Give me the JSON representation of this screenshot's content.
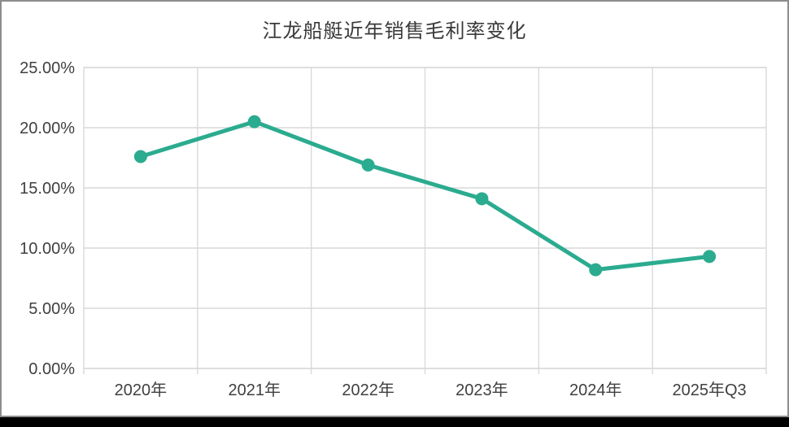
{
  "window": {
    "border_color": "#8d8d8d",
    "background": "#ffffff",
    "taskbar_color": "#000000"
  },
  "chart_data": {
    "type": "line",
    "title": "江龙船艇近年销售毛利率变化",
    "categories": [
      "2020年",
      "2021年",
      "2022年",
      "2023年",
      "2024年",
      "2025年Q3"
    ],
    "values": [
      17.6,
      20.5,
      16.9,
      14.1,
      8.2,
      9.3
    ],
    "unit": "%",
    "xlabel": "",
    "ylabel": "",
    "ylim": [
      0,
      25
    ],
    "ytick_step": 5,
    "ytick_labels_top_down": [
      "25.00%",
      "20.00%",
      "15.00%",
      "10.00%",
      "5.00%",
      "0.00%"
    ],
    "grid": "on",
    "legend_position": "none",
    "line_color": "#2bab8f",
    "marker": "circle",
    "marker_color": "#2bab8f",
    "gridline_color": "#d9d9d9",
    "axis_text_color": "#404040",
    "title_color": "#3a3a3a"
  }
}
